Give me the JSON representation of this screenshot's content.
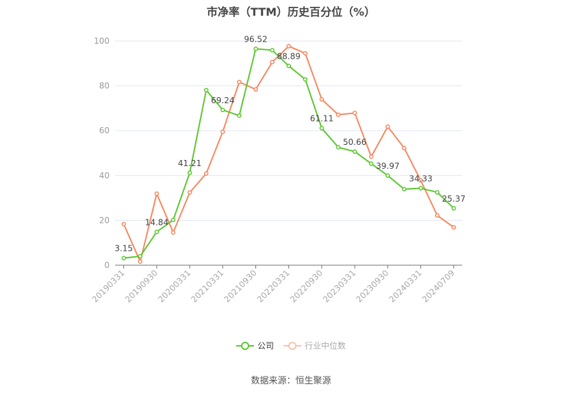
{
  "chart_data": {
    "type": "line",
    "title": "市净率（TTM）历史百分位（%）",
    "xlabel": "",
    "ylabel": "",
    "ylim": [
      0,
      100
    ],
    "yticks": [
      0,
      20,
      40,
      60,
      80,
      100
    ],
    "grid": true,
    "legend_position": "bottom",
    "categories": [
      "20190331",
      "",
      "20190930",
      "",
      "20200331",
      "",
      "20210331",
      "",
      "20210930",
      "",
      "20220331",
      "",
      "20220930",
      "",
      "20230331",
      "",
      "20230930",
      "",
      "20240331",
      "",
      "20240709"
    ],
    "tick_labels": [
      "20190331",
      "20190930",
      "20200331",
      "20210331",
      "20210930",
      "20220331",
      "20220930",
      "20230331",
      "20230930",
      "20240331",
      "20240709"
    ],
    "series": [
      {
        "name": "公司",
        "color": "#5BC72F",
        "values": [
          3.15,
          4.0,
          14.84,
          20.2,
          41.21,
          78.1,
          69.24,
          66.7,
          96.52,
          95.9,
          88.89,
          82.9,
          61.11,
          52.6,
          50.66,
          45.3,
          39.97,
          33.9,
          34.33,
          32.5,
          25.37
        ],
        "labeled_points": [
          {
            "index": 0,
            "label": "3.15"
          },
          {
            "index": 2,
            "label": "14.84"
          },
          {
            "index": 4,
            "label": "41.21"
          },
          {
            "index": 6,
            "label": "69.24"
          },
          {
            "index": 8,
            "label": "96.52"
          },
          {
            "index": 10,
            "label": "88.89"
          },
          {
            "index": 12,
            "label": "61.11"
          },
          {
            "index": 14,
            "label": "50.66"
          },
          {
            "index": 16,
            "label": "39.97"
          },
          {
            "index": 18,
            "label": "34.33"
          },
          {
            "index": 20,
            "label": "25.37"
          }
        ]
      },
      {
        "name": "行业中位数",
        "color": "#F5875E",
        "legend_faded": true,
        "values": [
          18.3,
          1.6,
          31.9,
          14.6,
          32.4,
          40.9,
          59.5,
          81.7,
          78.4,
          90.6,
          97.7,
          94.5,
          74.0,
          67.1,
          67.9,
          48.4,
          61.8,
          52.2,
          37.8,
          22.2,
          16.9
        ]
      }
    ]
  },
  "legend": {
    "items": [
      {
        "label": "公司",
        "color": "#5BC72F"
      },
      {
        "label": "行业中位数",
        "color": "#F5875E"
      }
    ]
  },
  "footer": {
    "source": "数据来源：恒生聚源"
  }
}
